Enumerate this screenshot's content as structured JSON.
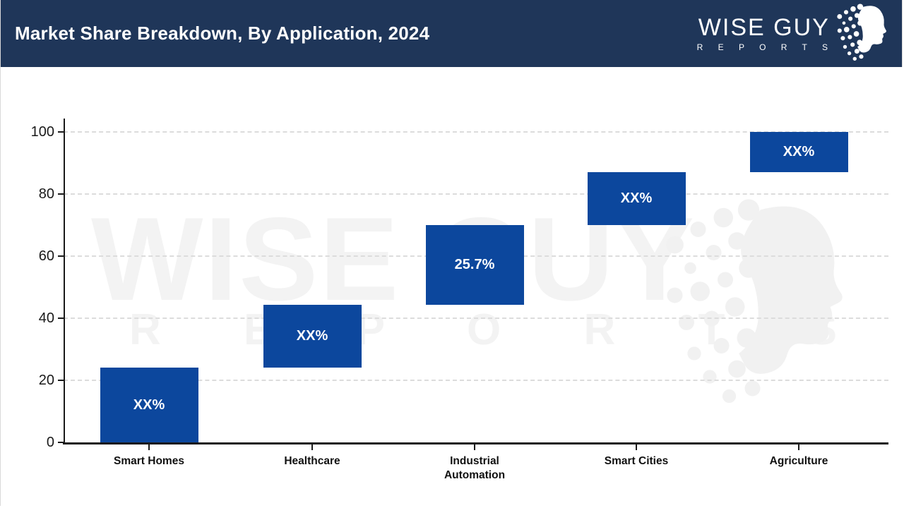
{
  "header": {
    "title": "Market Share Breakdown, By Application, 2024",
    "bg_color": "#1f3659",
    "logo": {
      "brand": "WISE GUY",
      "sub": "R E P O R T S"
    }
  },
  "watermark": {
    "brand": "WISE GUY",
    "sub": "R E P O R T S"
  },
  "chart_data": {
    "type": "bar",
    "subtype": "floating-waterfall",
    "title": "Market Share Breakdown, By Application, 2024",
    "categories": [
      "Smart Homes",
      "Healthcare",
      "Industrial\nAutomation",
      "Smart Cities",
      "Agriculture"
    ],
    "segments": [
      {
        "category": "Smart Homes",
        "start": 0,
        "end": 24,
        "label": "XX%"
      },
      {
        "category": "Healthcare",
        "start": 24,
        "end": 44.3,
        "label": "XX%"
      },
      {
        "category": "Industrial Automation",
        "start": 44.3,
        "end": 70,
        "label": "25.7%"
      },
      {
        "category": "Smart Cities",
        "start": 70,
        "end": 87,
        "label": "XX%"
      },
      {
        "category": "Agriculture",
        "start": 87,
        "end": 100,
        "label": "XX%"
      }
    ],
    "yticks": [
      0,
      20,
      40,
      60,
      80,
      100
    ],
    "ylim": [
      0,
      105
    ],
    "xlabel": "",
    "ylabel": "",
    "grid": "horizontal-dashed",
    "legend": "none",
    "colors": {
      "bar": "#0c479d",
      "bar_label": "#ffffff",
      "grid": "#dcdcdc",
      "axis": "#1a1a1a",
      "watermark": "#f3f3f3"
    }
  }
}
